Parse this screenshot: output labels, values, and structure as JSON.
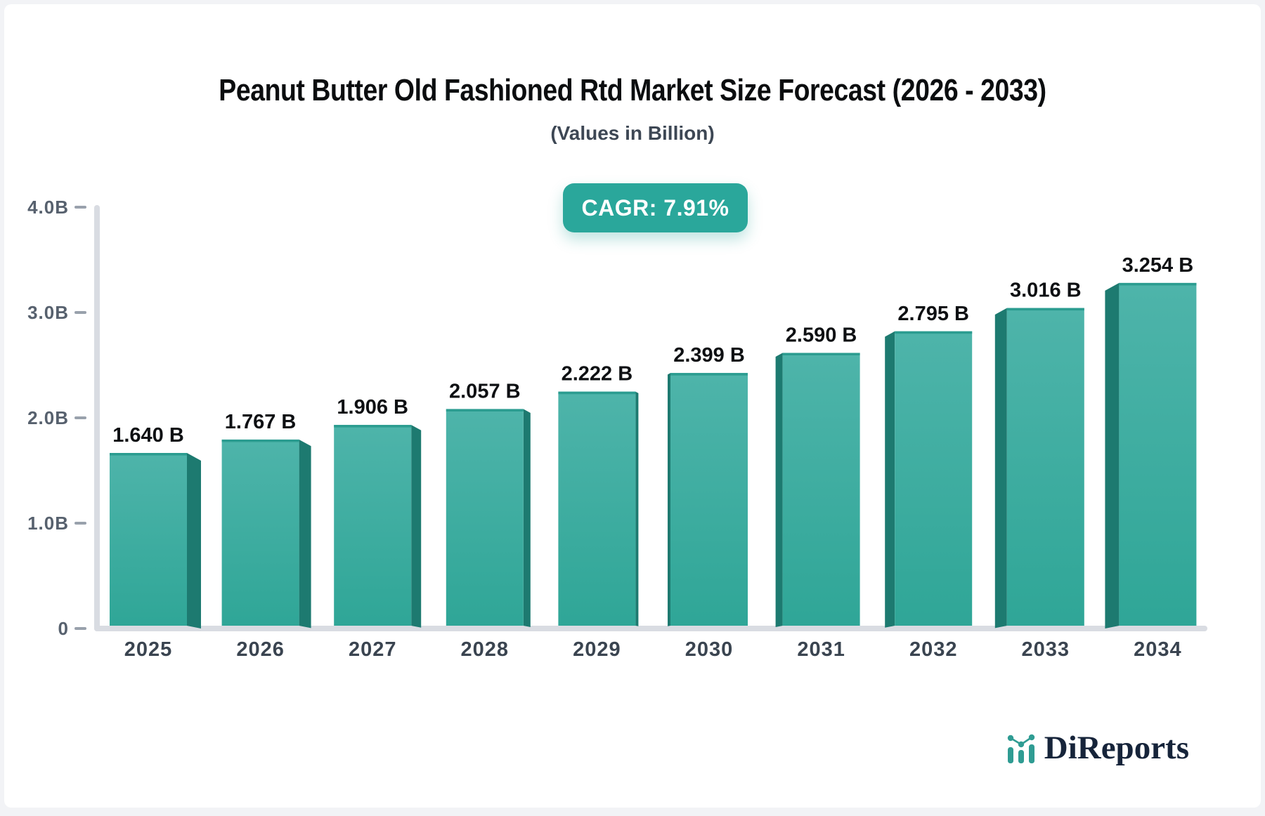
{
  "header": {
    "title": "Peanut Butter Old Fashioned Rtd Market Size Forecast (2026 - 2033)",
    "subtitle": "(Values in Billion)",
    "badge_label": "CAGR: 7.91%"
  },
  "chart_data": {
    "type": "bar",
    "title": "Peanut Butter Old Fashioned Rtd Market Size Forecast (2026 - 2033)",
    "subtitle": "(Values in Billion)",
    "badge_label": "CAGR: 7.91%",
    "cagr_percent": 7.91,
    "categories": [
      "2025",
      "2026",
      "2027",
      "2028",
      "2029",
      "2030",
      "2031",
      "2032",
      "2033",
      "2034"
    ],
    "values": [
      1.64,
      1.767,
      1.906,
      2.057,
      2.222,
      2.399,
      2.59,
      2.795,
      3.016,
      3.254
    ],
    "value_labels": [
      "1.640 B",
      "1.767 B",
      "1.906 B",
      "2.057 B",
      "2.222 B",
      "2.399 B",
      "2.590 B",
      "2.795 B",
      "3.016 B",
      "3.254 B"
    ],
    "y_ticks": [
      {
        "label": "4.0B",
        "value": 4
      },
      {
        "label": "3.0B",
        "value": 3
      },
      {
        "label": "2.0B",
        "value": 2
      },
      {
        "label": "1.0B",
        "value": 1
      },
      {
        "label": "0",
        "value": 0
      }
    ],
    "ylim": [
      0,
      4
    ],
    "xlabel": "",
    "ylabel": "",
    "grid": false,
    "legend": "none",
    "style": {
      "bar_face_top": "#4eb4aa",
      "bar_face_bottom": "#2fa697",
      "bar_top_edge": "#2b9c90",
      "bar_side": "#1d7a70",
      "axis_line": "#d9dce2",
      "tick_dash": "#99a1ac",
      "y_label_color": "#57616e",
      "x_label_color": "#3a4450",
      "value_label_color": "#0e1013",
      "badge_bg": "#2aa79b",
      "badge_text": "#ffffff"
    }
  },
  "footer": {
    "brand": "DiReports",
    "logo_icon": "mini-bar-chart-icon",
    "logo_teal": "#2f9c93",
    "logo_navy": "#16243a"
  }
}
